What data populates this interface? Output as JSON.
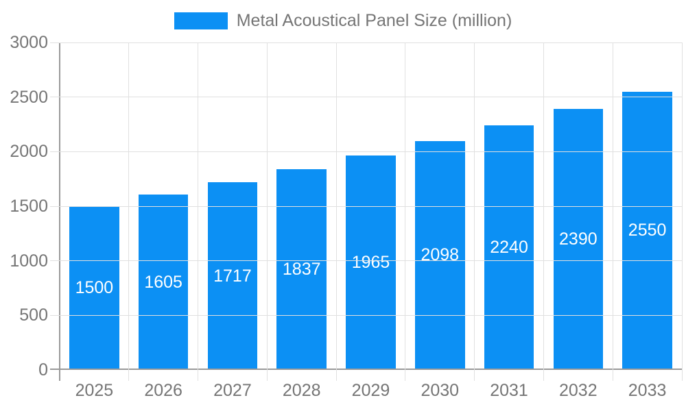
{
  "legend": {
    "label": "Metal Acoustical Panel Size (million)",
    "swatch_color": "#0C90F4"
  },
  "chart_data": {
    "type": "bar",
    "title": "Metal Acoustical Panel Size (million)",
    "categories": [
      "2025",
      "2026",
      "2027",
      "2028",
      "2029",
      "2030",
      "2031",
      "2032",
      "2033"
    ],
    "values": [
      1500,
      1605,
      1717,
      1837,
      1965,
      2098,
      2240,
      2390,
      2550
    ],
    "series_name": "Metal Acoustical Panel Size (million)",
    "xlabel": "",
    "ylabel": "",
    "ylim": [
      0,
      3000
    ],
    "yticks": [
      0,
      500,
      1000,
      1500,
      2000,
      2500,
      3000
    ],
    "grid": true,
    "legend_position": "top",
    "bar_color": "#0C90F4",
    "bar_label_color": "#ffffff",
    "axis_text_color": "#757575",
    "gridline_color": "#e0e0e0",
    "axis_line_color": "#999999"
  }
}
